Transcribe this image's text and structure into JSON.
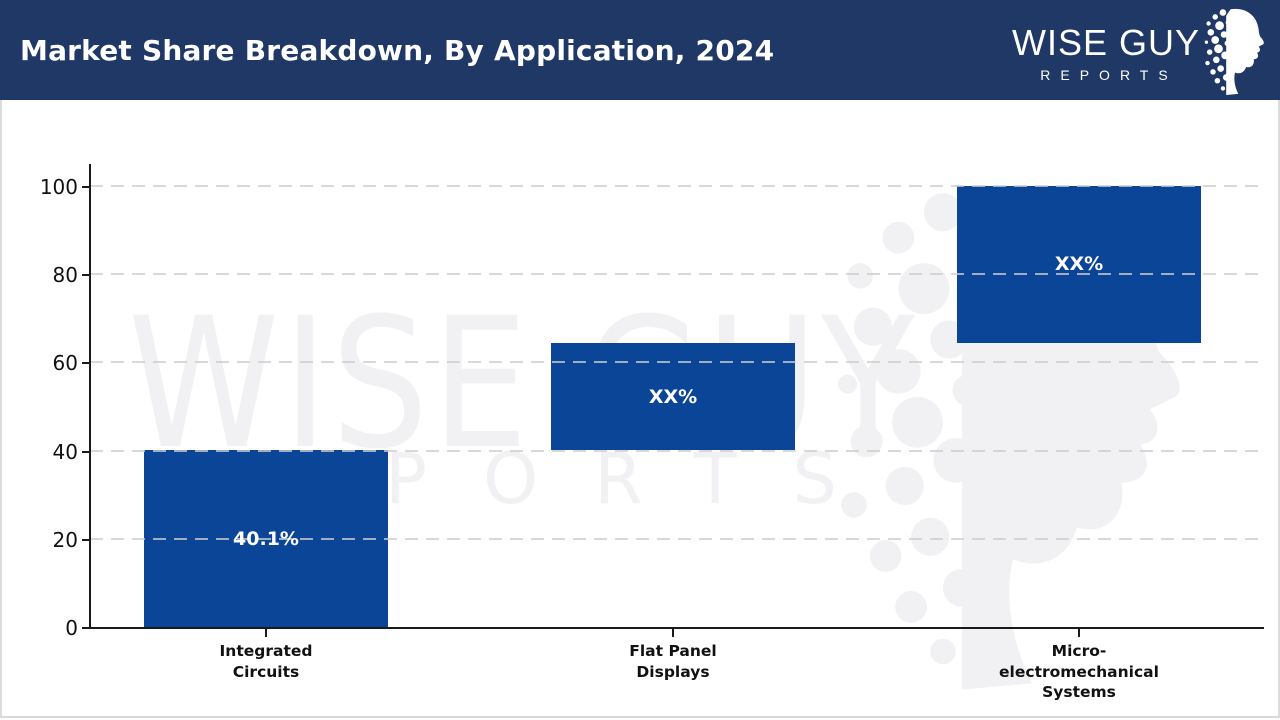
{
  "header": {
    "title": "Market Share Breakdown, By Application, 2024",
    "logo": {
      "brand": "WISE GUY",
      "sub": "REPORTS"
    }
  },
  "watermark": {
    "brand": "WISE GUY",
    "sub": "REPORTS"
  },
  "colors": {
    "header_bg": "#1f3866",
    "bar": "#0b4598",
    "bar_label": "#ffffff",
    "axis": "#1a1a1a",
    "gridline": "#d9d9d9",
    "watermark": "#f1f1f4"
  },
  "chart_data": {
    "type": "bar",
    "subtype": "waterfall",
    "title": "Market Share Breakdown, By Application, 2024",
    "xlabel": "",
    "ylabel": "",
    "categories": [
      [
        "Integrated",
        "Circuits"
      ],
      [
        "Flat Panel",
        "Displays"
      ],
      [
        "Micro-",
        "electromechanical",
        "Systems"
      ]
    ],
    "segments": [
      {
        "category": "Integrated Circuits",
        "start": 0,
        "end": 40.1,
        "label": "40.1%"
      },
      {
        "category": "Flat Panel Displays",
        "start": 40.1,
        "end": 64.4,
        "label": "XX%"
      },
      {
        "category": "Micro-electromechanical Systems",
        "start": 64.4,
        "end": 100,
        "label": "XX%"
      }
    ],
    "yticks": [
      0,
      20,
      40,
      60,
      80,
      100
    ],
    "ylim": [
      0,
      105
    ],
    "grid": "horizontal-dashed",
    "legend": "none"
  }
}
